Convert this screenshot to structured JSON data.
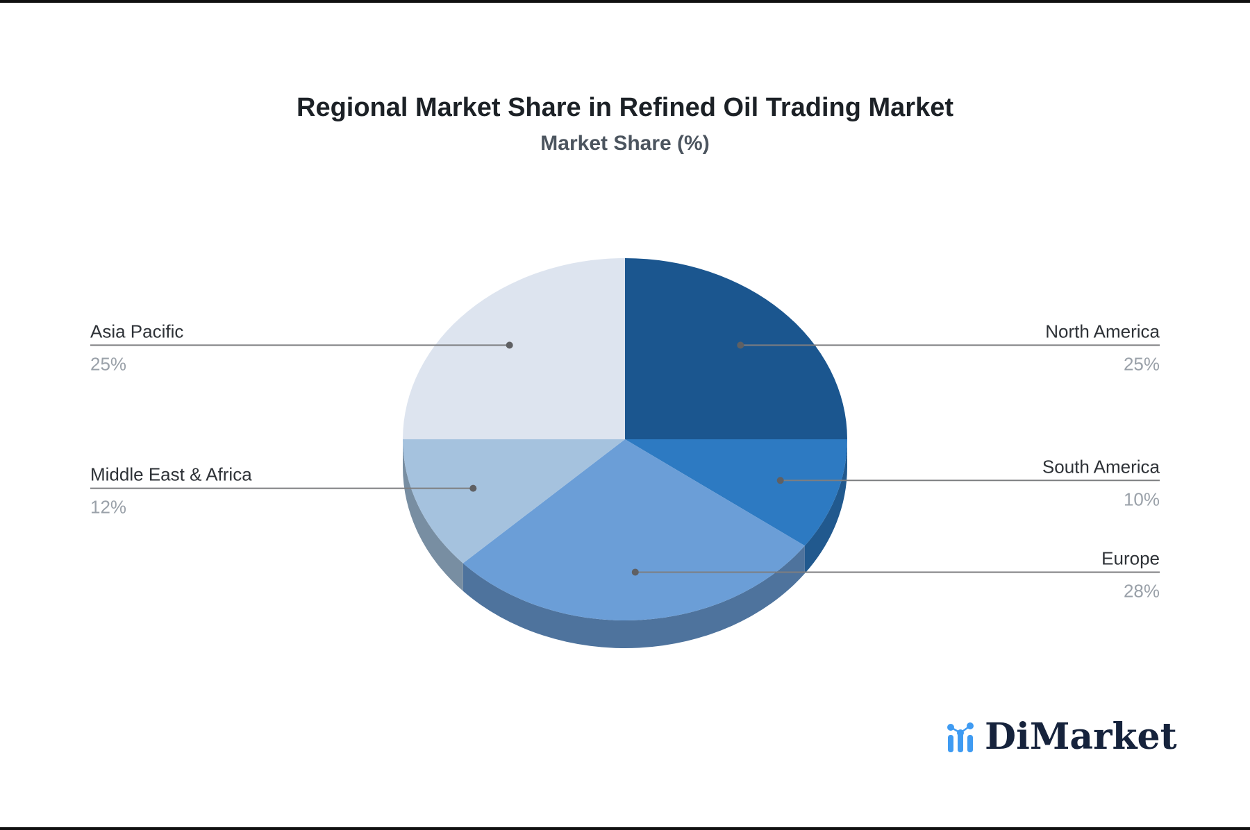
{
  "title": "Regional Market Share in Refined Oil Trading Market",
  "subtitle": "Market Share (%)",
  "logo": {
    "text": "DiMarket",
    "icon": "bar-line-chart-icon"
  },
  "palette": {
    "title_color": "#1c2126",
    "subtitle_color": "#4c555f",
    "label_color": "#2e3237",
    "percent_color": "#9aa1a9",
    "leader_line_color": "#7d7e80",
    "logo_blue": "#3f9bf2",
    "logo_navy": "#16233c"
  },
  "chart_data": {
    "type": "pie",
    "style": "3d",
    "title": "Regional Market Share in Refined Oil Trading Market",
    "subtitle": "Market Share (%)",
    "unit": "%",
    "direction": "clockwise",
    "start_angle_deg": 0,
    "legend_position": "callout-labels",
    "slices": [
      {
        "label": "North America",
        "value": 25,
        "display": "25%",
        "color": "#1b568f"
      },
      {
        "label": "South America",
        "value": 10,
        "display": "10%",
        "color": "#2d7ac2"
      },
      {
        "label": "Europe",
        "value": 28,
        "display": "28%",
        "color": "#6b9ed7"
      },
      {
        "label": "Middle East & Africa",
        "value": 12,
        "display": "12%",
        "color": "#a5c2de"
      },
      {
        "label": "Asia Pacific",
        "value": 25,
        "display": "25%",
        "color": "#dde4ef"
      }
    ]
  }
}
